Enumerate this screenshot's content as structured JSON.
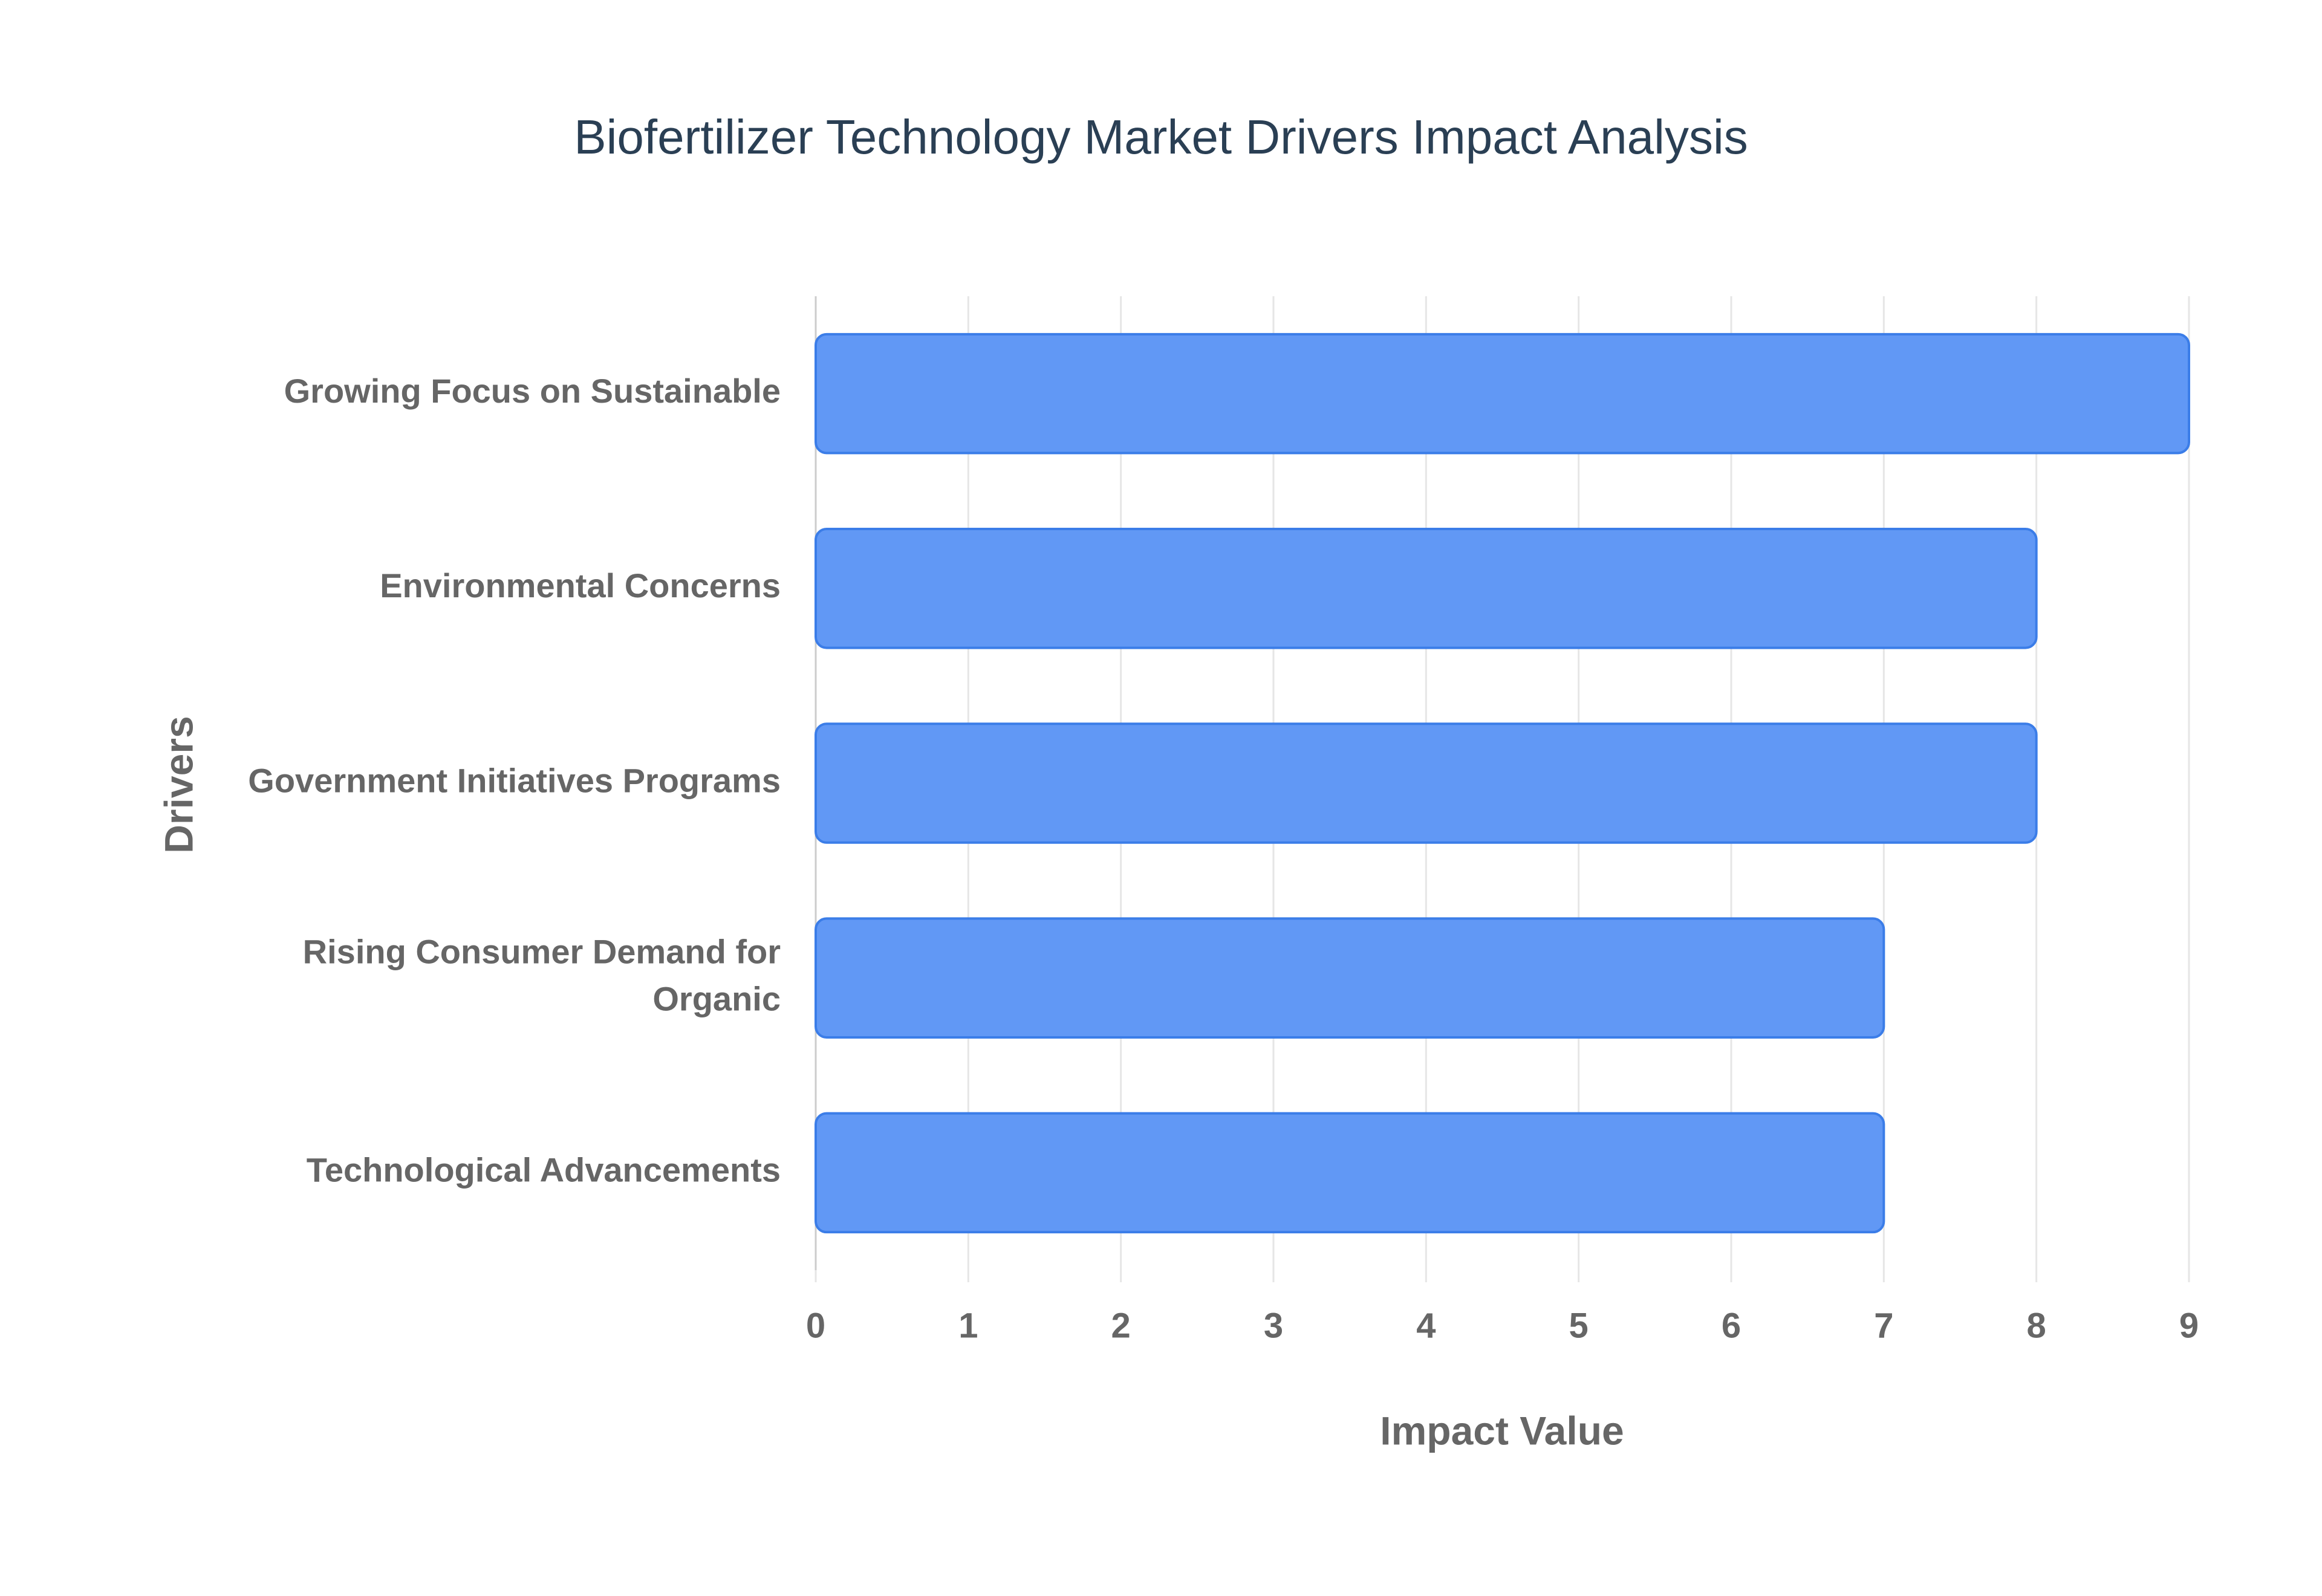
{
  "chart_data": {
    "type": "bar",
    "orientation": "horizontal",
    "title": "Biofertilizer Technology Market Drivers Impact Analysis",
    "x_label": "Impact Value",
    "y_label": "Drivers",
    "categories": [
      "Growing Focus on Sustainable",
      "Environmental Concerns",
      "Government Initiatives Programs",
      "Rising Consumer Demand for Organic",
      "Technological Advancements"
    ],
    "values": [
      9,
      8,
      8,
      7,
      7
    ],
    "color": "#6198f5",
    "edge_color": "#3b7de8",
    "xlim": [
      0,
      9
    ],
    "xticks": [
      0,
      1,
      2,
      3,
      4,
      5,
      6,
      7,
      8,
      9
    ],
    "grid": true
  }
}
